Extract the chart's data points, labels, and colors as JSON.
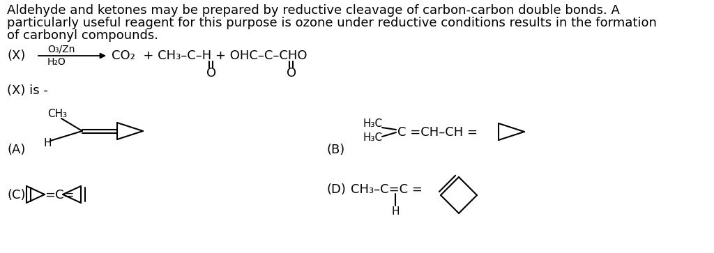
{
  "bg_color": "#ffffff",
  "text_color": "#000000",
  "para_line1": "Aldehyde and ketones may be prepared by reductive cleavage of carbon-carbon double bonds. A",
  "para_line2": "particularly useful reagent for this purpose is ozone under reductive conditions results in the formation",
  "para_line3": "of carbonyl compounds.",
  "x_label": "(X)",
  "arrow_top": "O₃/Zn",
  "arrow_bot": "H₂O",
  "products": "CO₂  + CH₃–C–H + OHC–C–CHO",
  "x_is": "(X) is -",
  "lA": "(A)",
  "lB": "(B)",
  "lC": "(C)",
  "lD": "(D)"
}
